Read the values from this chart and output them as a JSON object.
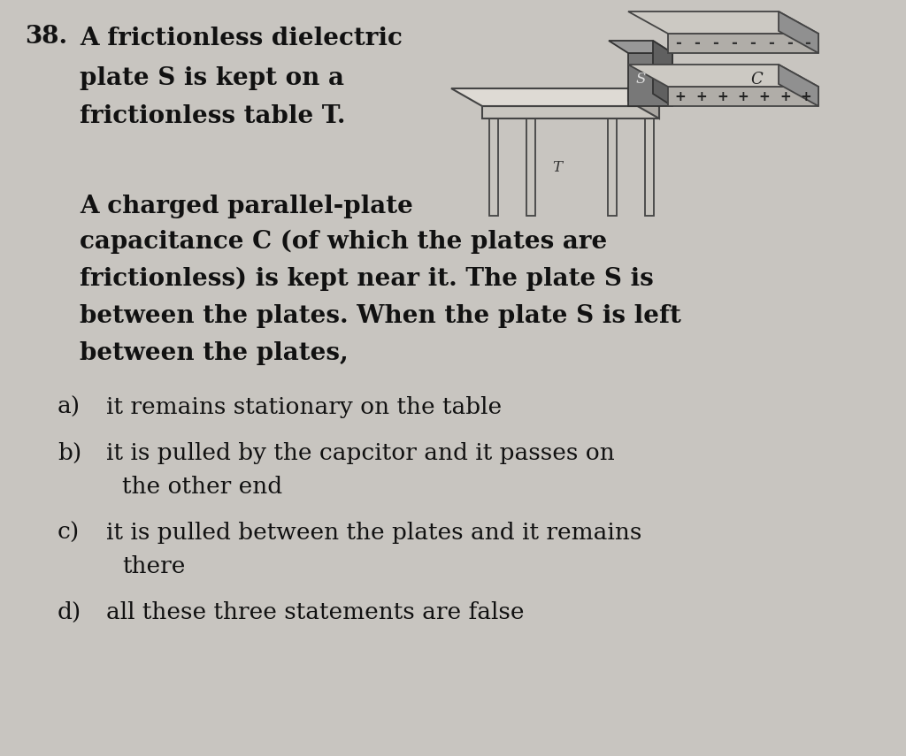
{
  "bg_color": "#c8c5c0",
  "font_color": "#111111",
  "q_num": "38.",
  "line1": "A frictionless dielectric",
  "line2": "plate S is kept on a",
  "line3": "frictionless table T.",
  "line4": "A charged parallel-plate",
  "body_lines": [
    "capacitance C (of which the plates are",
    "frictionless) is kept near it. The plate S is",
    "between the plates. When the plate S is left",
    "between the plates,"
  ],
  "opt_a_label": "a)",
  "opt_a_text": "it remains stationary on the table",
  "opt_b_label": "b)",
  "opt_b_text1": "it is pulled by the capcitor and it passes on",
  "opt_b_text2": "the other end",
  "opt_c_label": "c)",
  "opt_c_text1": "it is pulled between the plates and it remains",
  "opt_c_text2": "there",
  "opt_d_label": "d)",
  "opt_d_text": "all these three statements are false",
  "table_face": "#c8c5bf",
  "table_top": "#dedad4",
  "table_right": "#aaa7a2",
  "table_edge": "#444444",
  "plate_s_face": "#787878",
  "plate_s_top": "#989898",
  "plate_s_right": "#606060",
  "plate_s_edge": "#333333",
  "cap_face": "#b0ada8",
  "cap_top": "#ccc9c3",
  "cap_right": "#909090",
  "cap_edge": "#444444"
}
